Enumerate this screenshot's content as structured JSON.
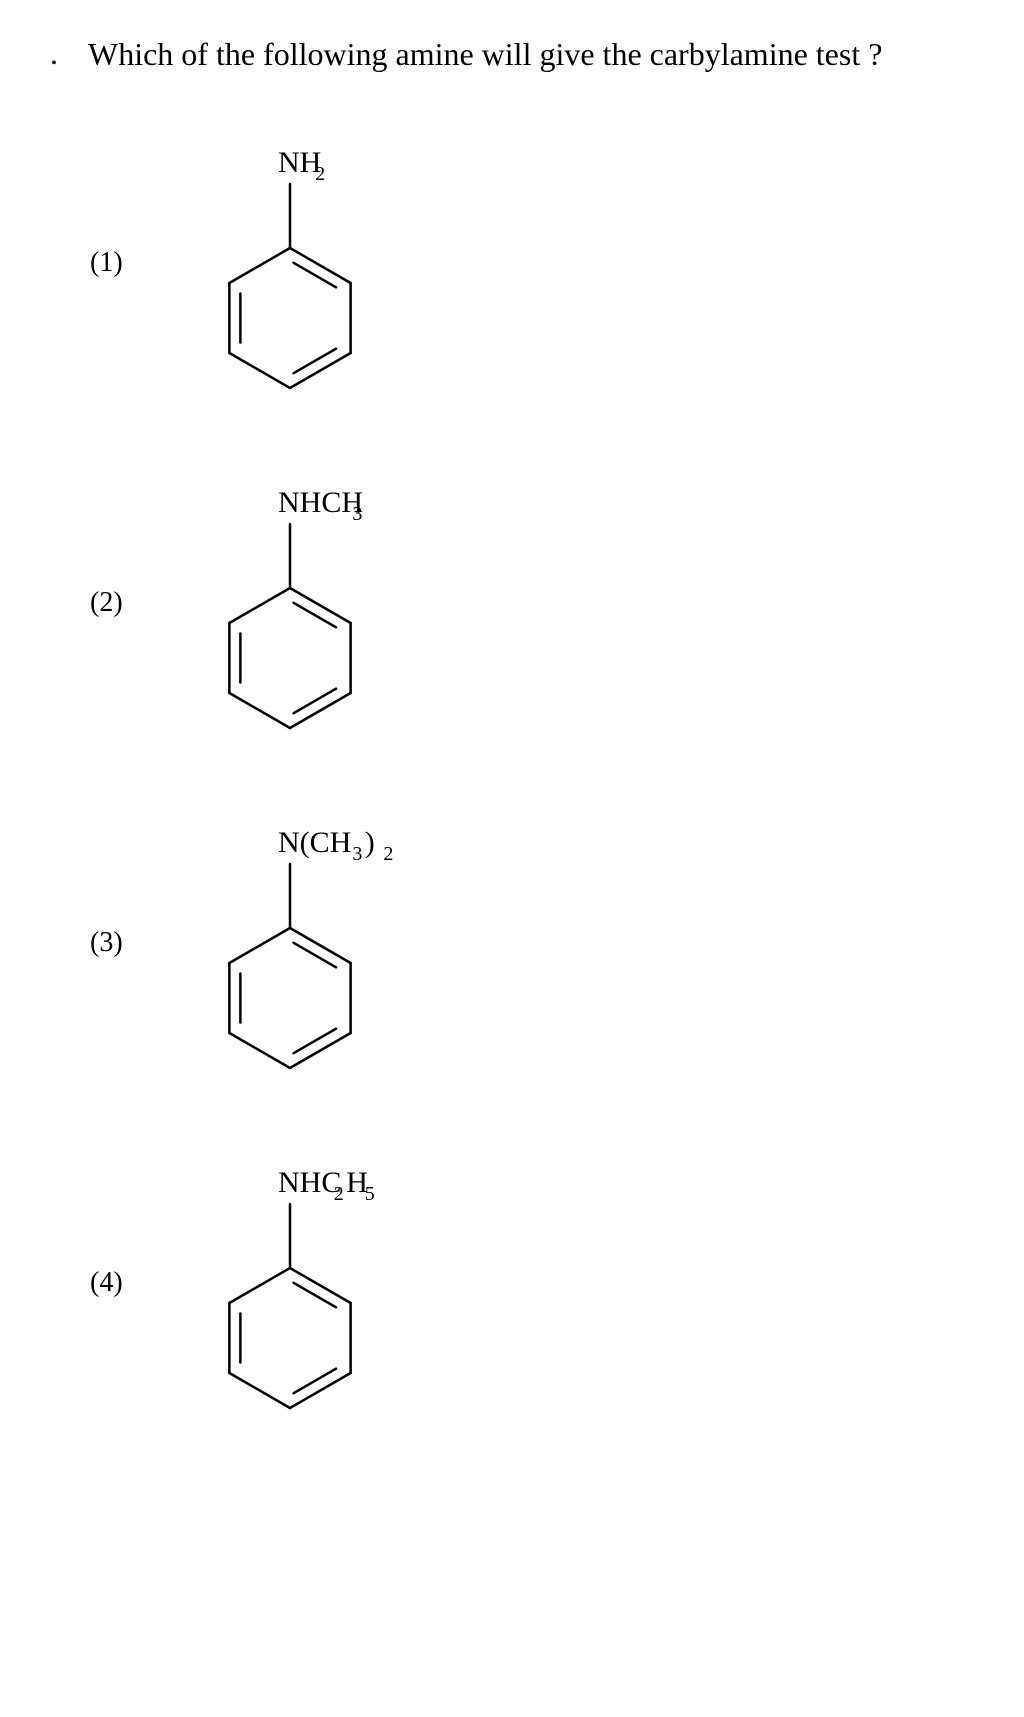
{
  "question": {
    "bullet": ".",
    "text": "Which of the following amine will give the carbylamine test ?"
  },
  "options": [
    {
      "num": "(1)",
      "substituent": "NH",
      "sub": "2"
    },
    {
      "num": "(2)",
      "substituent": "NHCH",
      "sub": "3"
    },
    {
      "num": "(3)",
      "substituent": "N(CH",
      "sub": "3",
      "tail": ")",
      "sub2": "2"
    },
    {
      "num": "(4)",
      "substituent": "NHC",
      "sub": "2",
      "tail": "H",
      "sub2": "5"
    }
  ],
  "style": {
    "stroke": "#000000",
    "stroke_width": 2.5,
    "ring_radius": 70,
    "bond_len": 70,
    "font_main": 30,
    "font_sub": 20,
    "text_color": "#000000"
  }
}
